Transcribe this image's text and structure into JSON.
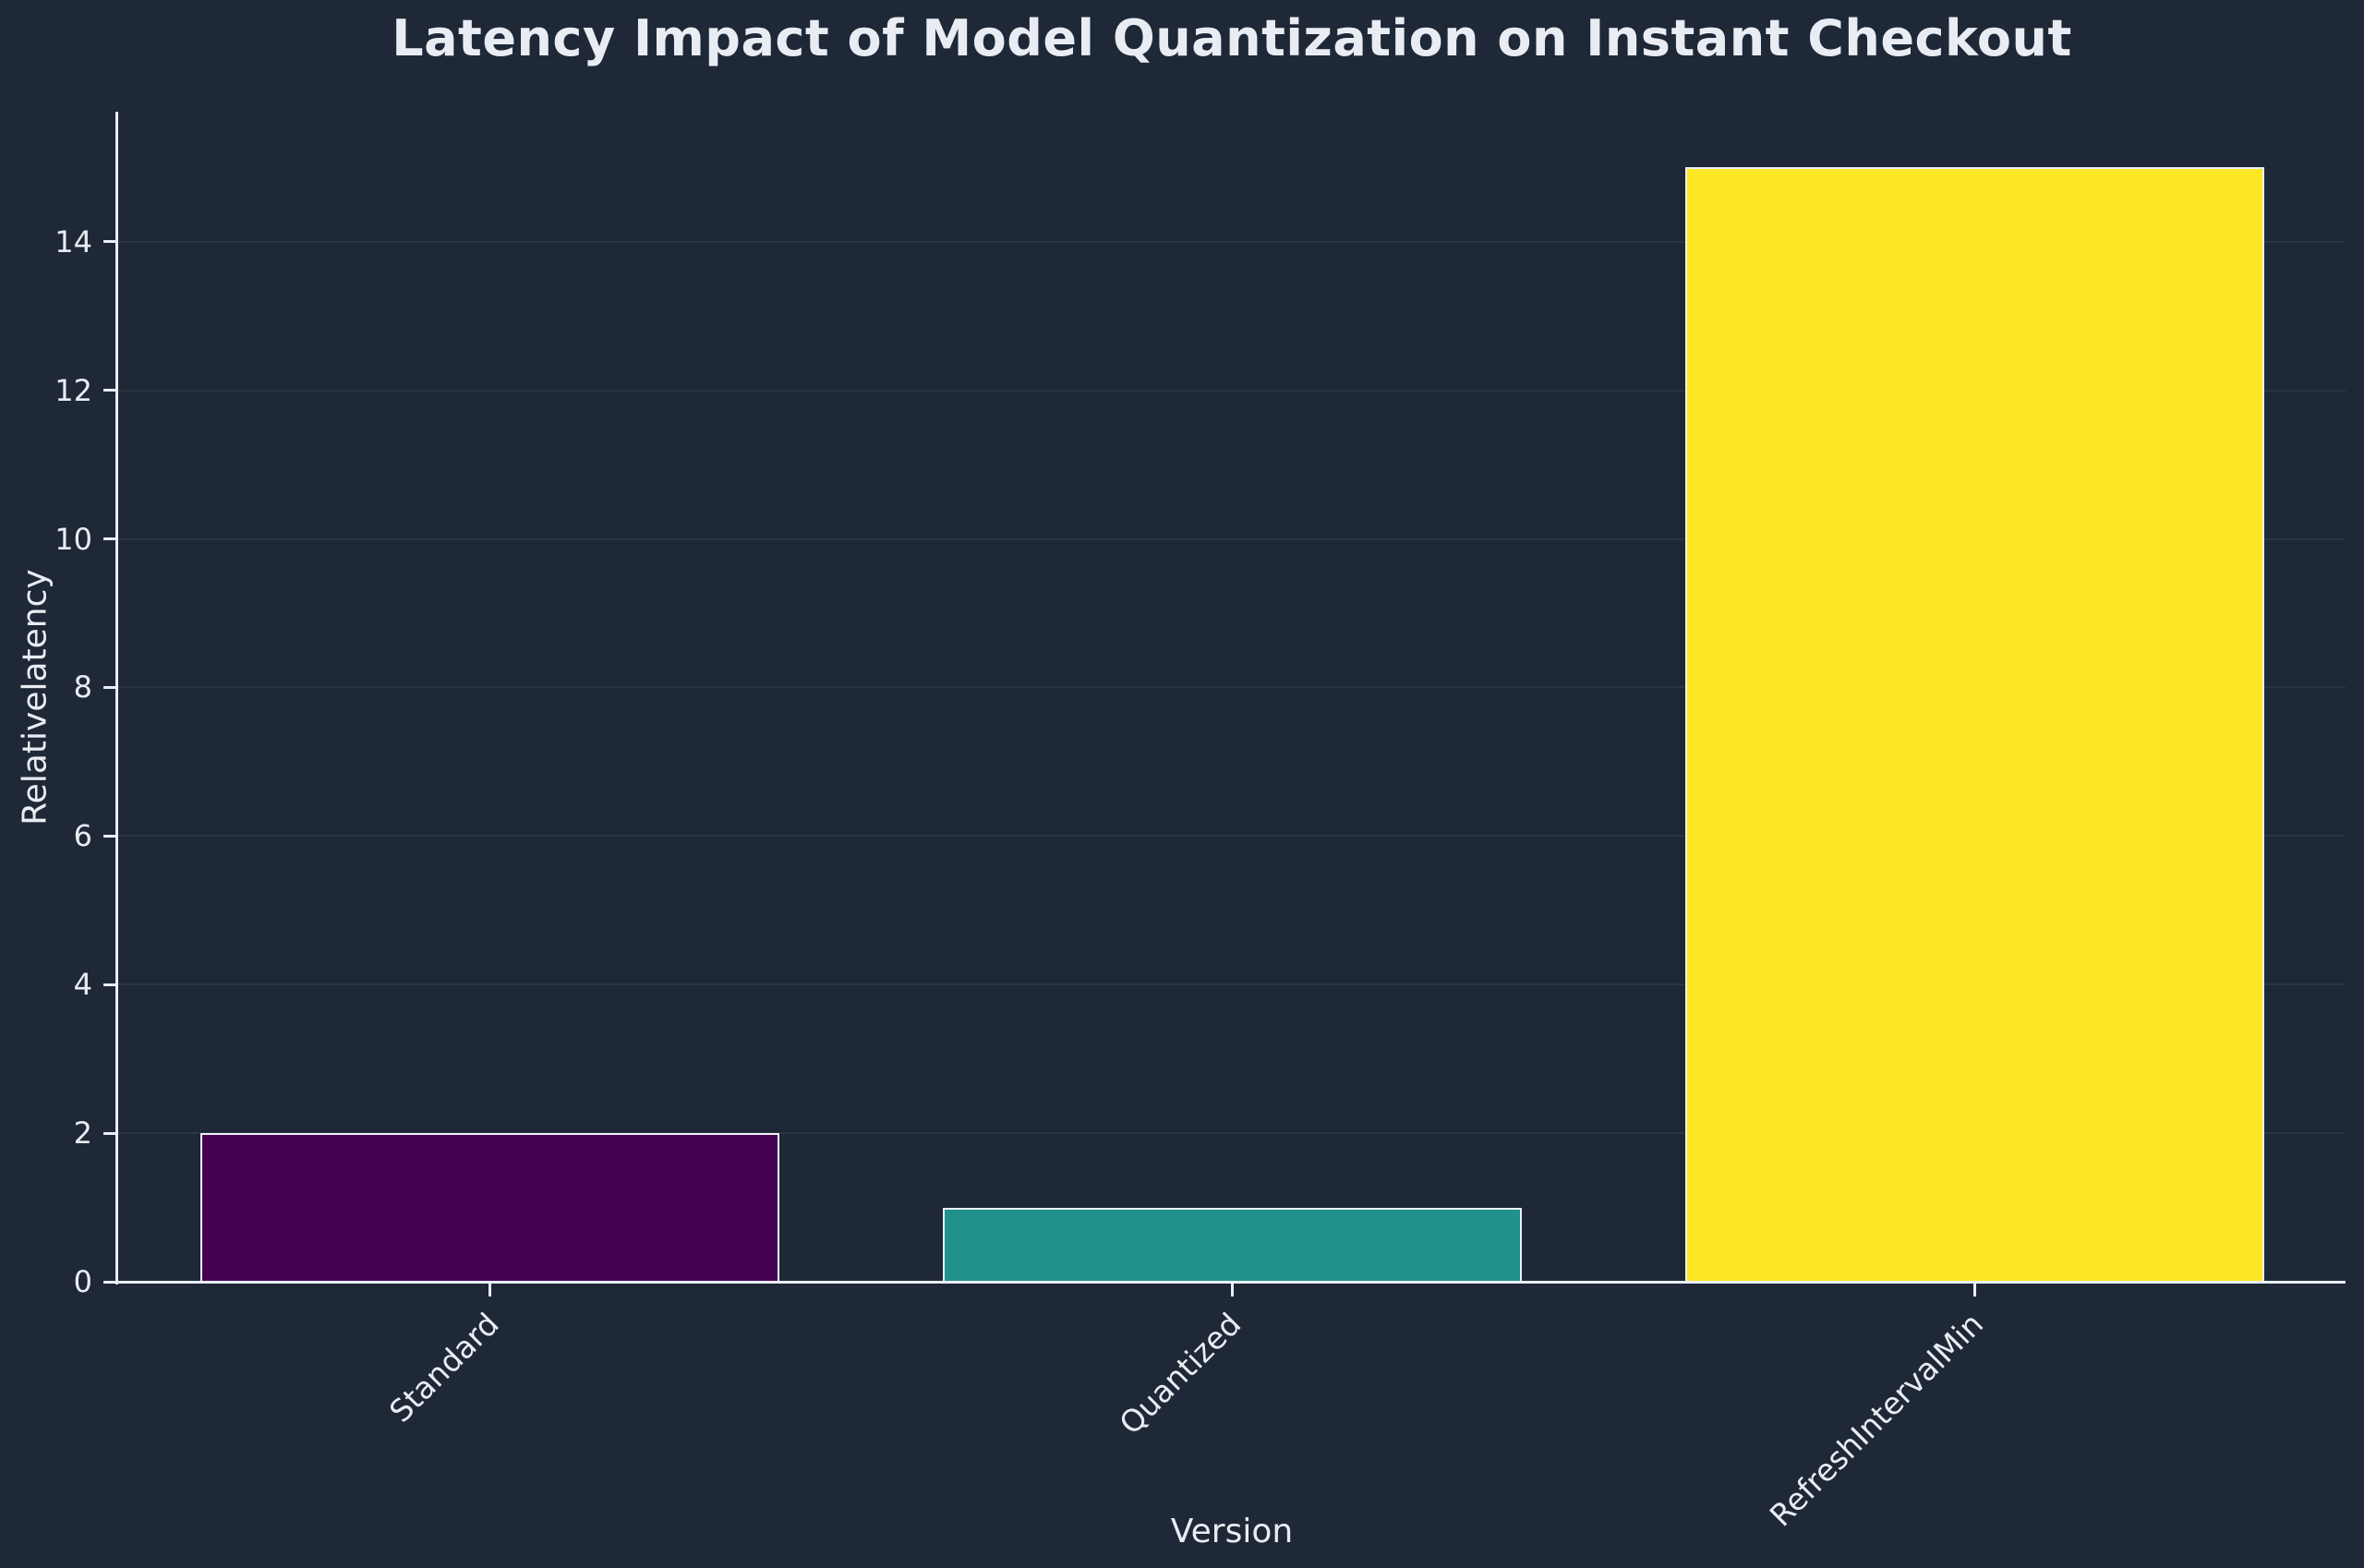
{
  "page": {
    "background_color": "#1e2837",
    "text_color": "#e9edf3",
    "axis_color": "#e9eef5",
    "grid_color": "rgba(255,255,255,0.06)"
  },
  "chart_data": {
    "type": "bar",
    "title": "Latency Impact of Model Quantization on Instant Checkout",
    "xlabel": "Version",
    "ylabel": "Relativelatency",
    "categories": [
      "Standard",
      "Quantized",
      "RefreshIntervalMin"
    ],
    "values": [
      2,
      1,
      15
    ],
    "bar_colors": [
      "#440154",
      "#21918c",
      "#fde725"
    ],
    "bar_edge_color": "#edf0f6",
    "yticks": [
      0,
      2,
      4,
      6,
      8,
      10,
      12,
      14
    ],
    "ylim": [
      0,
      15.75
    ],
    "x_tick_rotation": 45,
    "grid": "horizontal",
    "legend": "none"
  }
}
